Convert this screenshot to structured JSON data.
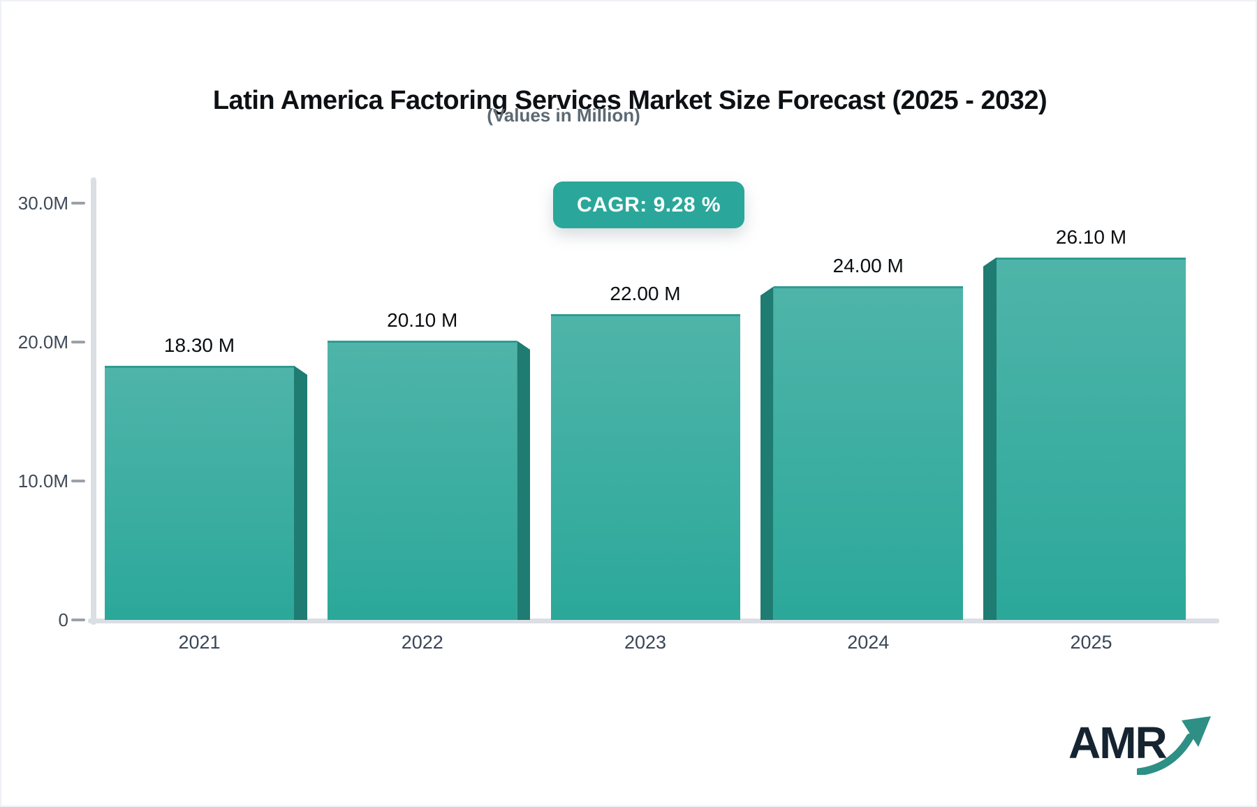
{
  "header": {
    "title": "Latin America Factoring Services Market Size Forecast (2025 - 2032)",
    "subtitle": "(Values in Million)"
  },
  "cagr_badge": {
    "text": "CAGR: 9.28 %",
    "bg": "#2AA79A",
    "text_color": "#FFFFFF"
  },
  "chart_data": {
    "type": "bar",
    "title": "Latin America Factoring Services Market Size Forecast (2025 - 2032)",
    "subtitle": "(Values in Million)",
    "unit": "Million",
    "categories": [
      "2021",
      "2022",
      "2023",
      "2024",
      "2025"
    ],
    "values": [
      18.3,
      20.1,
      22.0,
      24.0,
      26.1
    ],
    "value_labels": [
      "18.30 M",
      "20.10 M",
      "22.00 M",
      "24.00 M",
      "26.10 M"
    ],
    "cagr_percent": "9.28 %",
    "ylim": [
      0,
      30
    ],
    "yticks": [
      {
        "value": 30,
        "label": "30.0M"
      },
      {
        "value": 20,
        "label": "20.0M"
      },
      {
        "value": 10,
        "label": "10.0M"
      },
      {
        "value": 0,
        "label": "0"
      }
    ],
    "grid": false,
    "legend": "none",
    "bar_style": {
      "face_top": "#4FB4A9",
      "face_bottom": "#2BA89A",
      "side": "#1F7C72",
      "top_edge": "#2E9C91"
    }
  },
  "axis_colors": {
    "line": "#DBDEE3",
    "tick": "#9AA1A8",
    "y_label": "#3F4A57",
    "x_label": "#3A4656",
    "value_label": "#0B0E11"
  },
  "logo": {
    "text": "AMR",
    "color": "#152430",
    "arrow_color": "#2E8F85"
  }
}
